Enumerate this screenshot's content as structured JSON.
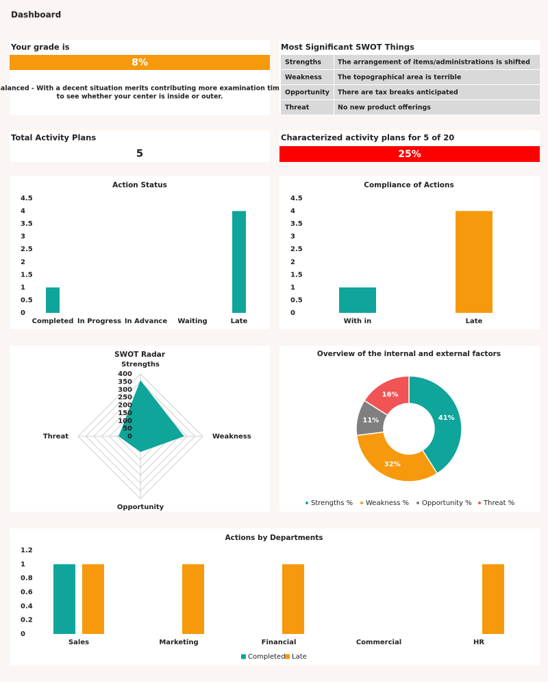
{
  "header": {
    "title": "Dashboard"
  },
  "grade": {
    "title": "Your grade is",
    "value": "8%",
    "comment": [
      "Balanced - With a decent situation merits contributing more examination time",
      "to see whether your center is inside or outer."
    ]
  },
  "swot_table": {
    "title": "Most Significant SWOT Things",
    "rows": [
      [
        "Strengths",
        "The arrangement of items/administrations is shifted"
      ],
      [
        "Weakness",
        "The topographical area is terrible"
      ],
      [
        "Opportunity",
        "There are tax breaks anticipated"
      ],
      [
        "Threat",
        "No new product offerings"
      ]
    ]
  },
  "total_plans": {
    "title": "Total Activity Plans",
    "value": 5
  },
  "characterized": {
    "title": "Characterized activity plans for 5 of 20",
    "value": "25%"
  },
  "chart_data": [
    {
      "type": "bar",
      "title": "Action Status",
      "categories": [
        "Completed",
        "In Progress",
        "In Advance",
        "Waiting",
        "Late"
      ],
      "values": [
        1,
        0,
        0,
        0,
        4
      ],
      "color": "#10a59b",
      "ylim": [
        0,
        4.5
      ],
      "yticks": [
        0,
        0.5,
        1,
        1.5,
        2,
        2.5,
        3,
        3.5,
        4,
        4.5
      ],
      "grid": false
    },
    {
      "type": "bar",
      "title": "Compliance of Actions",
      "categories": [
        "With in",
        "Late"
      ],
      "values": [
        1,
        4
      ],
      "colors": [
        "#10a59b",
        "#f7990c"
      ],
      "ylim": [
        0,
        4.5
      ],
      "yticks": [
        0,
        0.5,
        1,
        1.5,
        2,
        2.5,
        3,
        3.5,
        4,
        4.5
      ],
      "grid": false
    },
    {
      "type": "radar",
      "title": "SWOT Radar",
      "categories": [
        "Strengths",
        "Weakness",
        "Opportunity",
        "Threat"
      ],
      "values": [
        360,
        280,
        100,
        140
      ],
      "color": "#10a59b",
      "ylim": [
        0,
        400
      ],
      "yticks": [
        0,
        50,
        100,
        150,
        200,
        250,
        300,
        350,
        400
      ]
    },
    {
      "type": "donut",
      "title": "Overview of the internal and external factors",
      "categories": [
        "Strengths %",
        "Weakness %",
        "Opportunity %",
        "Threat %"
      ],
      "values": [
        41,
        32,
        11,
        16
      ],
      "value_labels": [
        "41%",
        "32%",
        "11%",
        "16%"
      ],
      "colors": [
        "#10a59b",
        "#f7990c",
        "#7f7f7f",
        "#f05454"
      ],
      "legend": "bottom"
    },
    {
      "type": "bar",
      "title": "Actions by Departments",
      "categories": [
        "Sales",
        "Marketing",
        "Financial",
        "Commercial",
        "HR"
      ],
      "series": [
        {
          "name": "Completed",
          "color": "#10a59b",
          "values": [
            1,
            0,
            0,
            0,
            0
          ]
        },
        {
          "name": "Late",
          "color": "#f7990c",
          "values": [
            1,
            1,
            1,
            0,
            1
          ]
        }
      ],
      "ylim": [
        0,
        1.2
      ],
      "yticks": [
        0,
        0.2,
        0.4,
        0.6,
        0.8,
        1,
        1.2
      ],
      "grid": false,
      "legend": "bottom"
    }
  ]
}
